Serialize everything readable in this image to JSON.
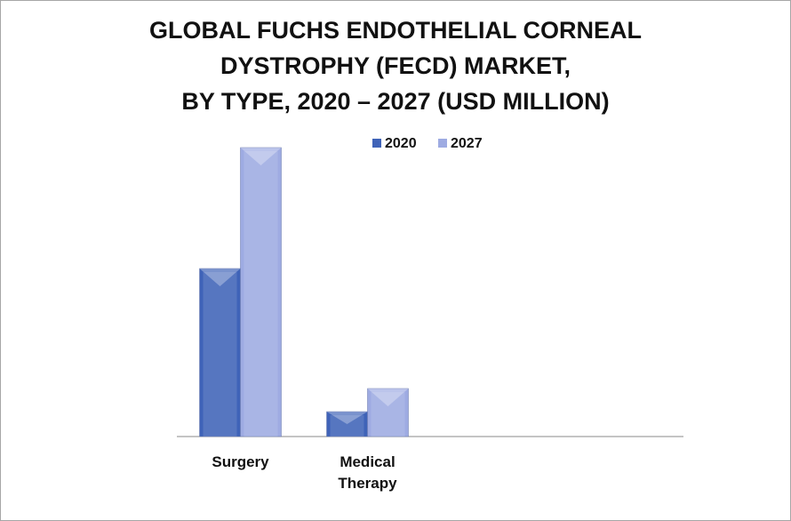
{
  "chart_data": {
    "type": "bar",
    "title": [
      "GLOBAL FUCHS ENDOTHELIAL CORNEAL",
      "DYSTROPHY (FECD) MARKET,",
      "BY TYPE, 2020 – 2027 (USD MILLION)"
    ],
    "categories": [
      "Surgery",
      "Medical Therapy"
    ],
    "series": [
      {
        "name": "2020",
        "color": "#3f63b8",
        "values": [
          189,
          28
        ]
      },
      {
        "name": "2027",
        "color": "#9eabe2",
        "values": [
          325,
          54
        ]
      }
    ],
    "ylim": [
      0,
      340
    ]
  }
}
